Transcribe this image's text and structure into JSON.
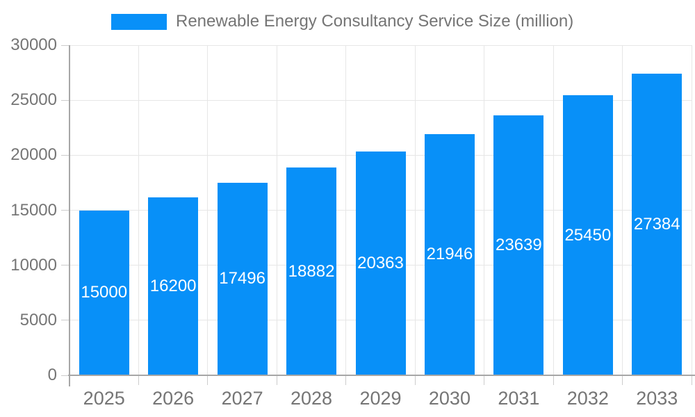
{
  "legend": {
    "label": "Renewable Energy Consultancy Service Size (million)"
  },
  "chart_data": {
    "type": "bar",
    "title": "Renewable Energy Consultancy Service Size (million)",
    "categories": [
      "2025",
      "2026",
      "2027",
      "2028",
      "2029",
      "2030",
      "2031",
      "2032",
      "2033"
    ],
    "series": [
      {
        "name": "Renewable Energy Consultancy Service Size (million)",
        "values": [
          15000,
          16200,
          17496,
          18882,
          20363,
          21946,
          23639,
          25450,
          27384
        ]
      }
    ],
    "xlabel": "",
    "ylabel": "",
    "ylim": [
      0,
      30000
    ],
    "ytick_interval": 5000,
    "ytick_labels": [
      "0",
      "5000",
      "10000",
      "15000",
      "20000",
      "25000",
      "30000"
    ],
    "legend_position": "top",
    "grid": "on",
    "data_labels": "inside-center, white",
    "colors": {
      "bar": "#0890f8",
      "bar_value_label": "#ffffff",
      "axis_label": "#757575",
      "legend_text": "#757575",
      "axis_line": "#a6a6a6",
      "gridline": "#e6e6e6",
      "tick": "#cccccc",
      "background": "#ffffff"
    }
  }
}
